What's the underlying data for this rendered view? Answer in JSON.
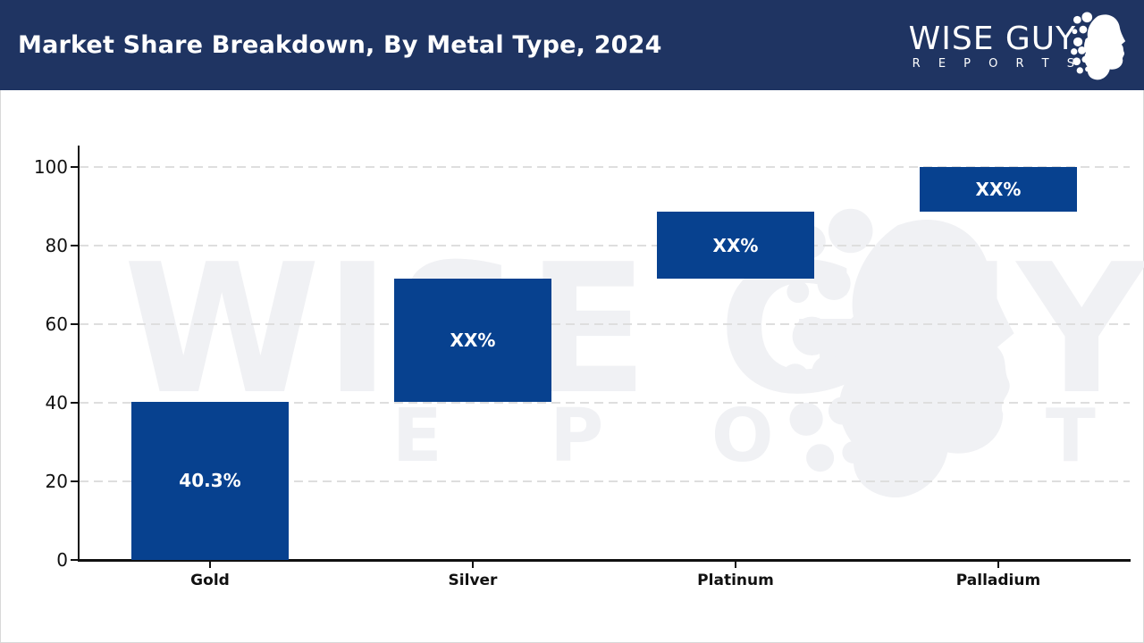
{
  "header": {
    "title": "Market Share Breakdown, By Metal Type, 2024",
    "logo": {
      "line1": "WISE GUY",
      "line2": "R E P O R T S"
    }
  },
  "watermark": {
    "line1": "WISE GUY",
    "line2": "R E P O R T S"
  },
  "chart_data": {
    "type": "bar",
    "subtype": "waterfall",
    "title": "Market Share Breakdown, By Metal Type, 2024",
    "categories": [
      "Gold",
      "Silver",
      "Platinum",
      "Palladium"
    ],
    "segments": [
      {
        "category": "Gold",
        "start": 0,
        "end": 40.3,
        "label": "40.3%"
      },
      {
        "category": "Silver",
        "start": 40.3,
        "end": 71.5,
        "label": "XX%"
      },
      {
        "category": "Platinum",
        "start": 71.5,
        "end": 88.5,
        "label": "XX%"
      },
      {
        "category": "Palladium",
        "start": 88.5,
        "end": 100,
        "label": "XX%"
      }
    ],
    "yticks": [
      0,
      20,
      40,
      60,
      80,
      100
    ],
    "ylim": [
      0,
      105
    ],
    "xlabel": "",
    "ylabel": "",
    "grid": "horizontal-dashed",
    "legend": "none",
    "bar_color": "#07418f",
    "bar_label_color": "#ffffff"
  },
  "colors": {
    "header_bg": "#1f3462",
    "bar": "#07418f",
    "grid": "#dedede",
    "axis": "#111111",
    "watermark": "#f0f1f4",
    "frame_border": "#d9d9d9"
  }
}
